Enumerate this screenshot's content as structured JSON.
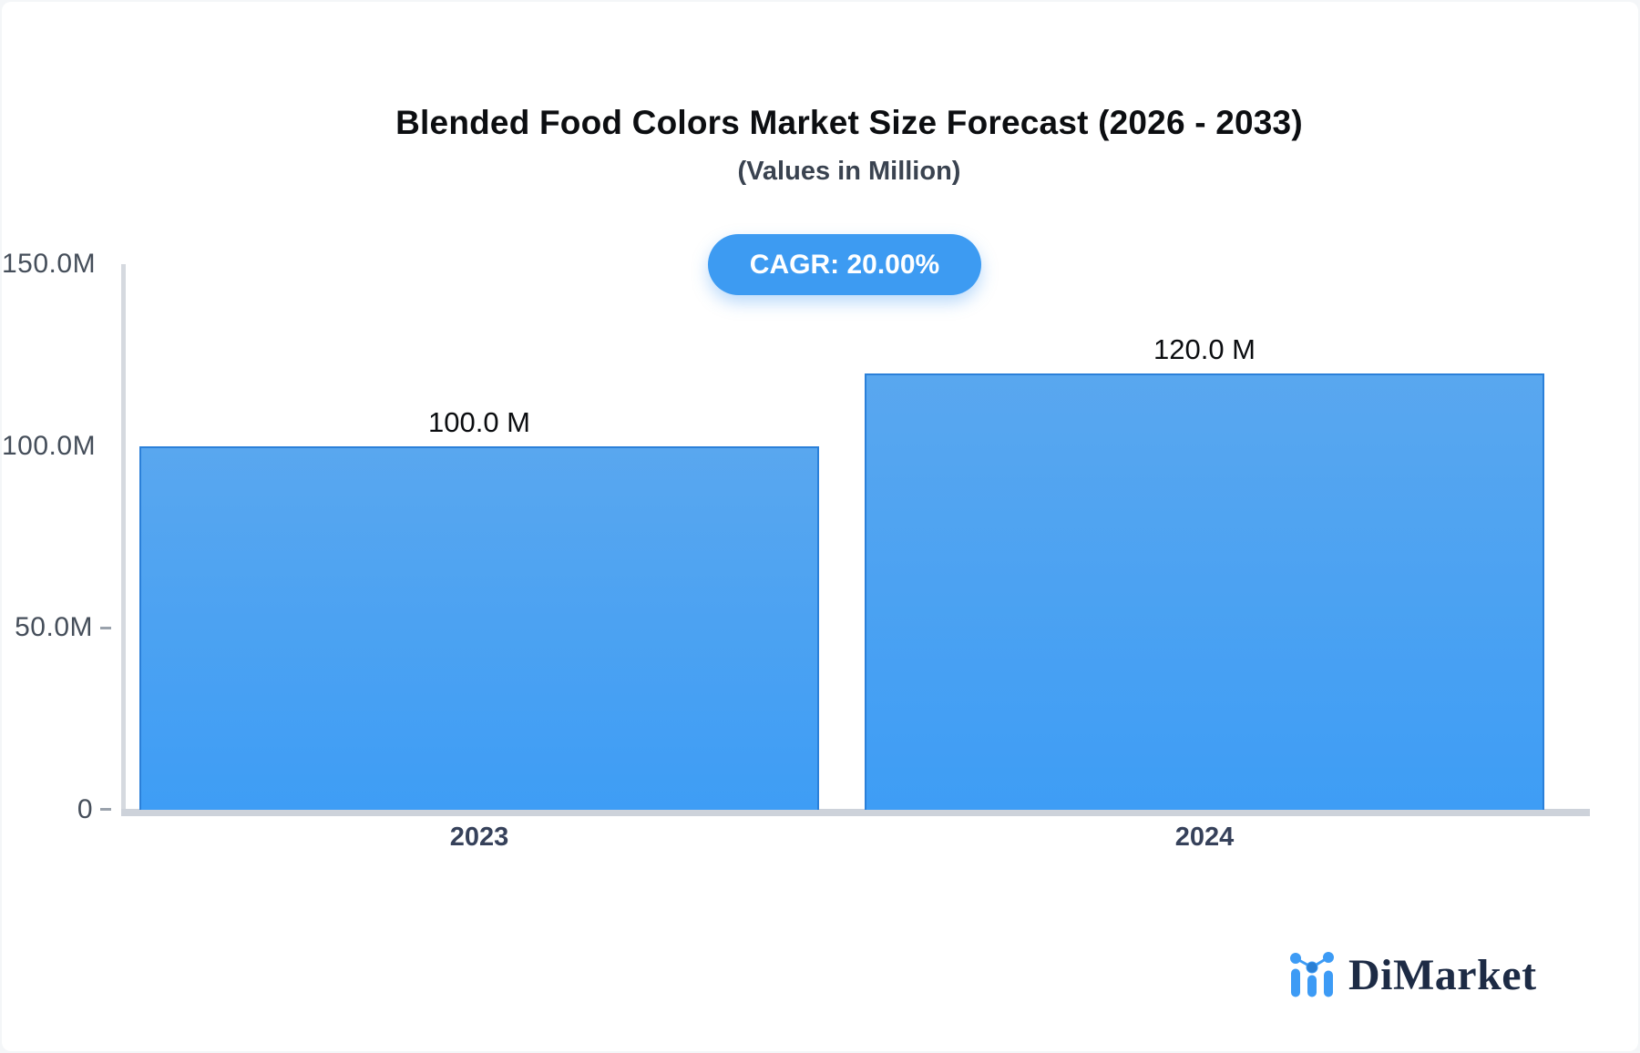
{
  "chart": {
    "title": "Blended Food Colors Market Size Forecast (2026 - 2033)",
    "subtitle": "(Values in Million)",
    "cagr_badge": "CAGR: 20.00%"
  },
  "logo": {
    "text": "DiMarket"
  },
  "colors": {
    "page_background": "#f4f6f8",
    "card_background": "#ffffff",
    "badge_background": "#3d9bf2",
    "bar_fill_top": "#59a7ef",
    "bar_fill_bottom": "#3e9df5",
    "bar_border": "#2b80d9",
    "axis_line": "#d5d9df",
    "baseline": "#cdd2da",
    "tick_label": "#454e5a",
    "category_label": "#36415a",
    "logo_blue": "#3d9bf5",
    "logo_navy": "#1d2b45"
  },
  "chart_data": {
    "type": "bar",
    "title": "Blended Food Colors Market Size Forecast (2026 - 2033)",
    "subtitle": "(Values in Million)",
    "annotation": "CAGR: 20.00%",
    "unit": "Million",
    "categories": [
      "2023",
      "2024"
    ],
    "values": [
      100,
      120
    ],
    "value_labels": [
      "100.0 M",
      "120.0 M"
    ],
    "xlabel": "",
    "ylabel": "",
    "ylim": [
      0,
      150
    ],
    "yticks": [
      {
        "label": "150.0M",
        "value": 150,
        "tick_mark": false
      },
      {
        "label": "100.0M",
        "value": 100,
        "tick_mark": false
      },
      {
        "label": "50.0M",
        "value": 50,
        "tick_mark": true
      },
      {
        "label": "0",
        "value": 0,
        "tick_mark": true
      }
    ],
    "grid": false,
    "legend": "none"
  }
}
